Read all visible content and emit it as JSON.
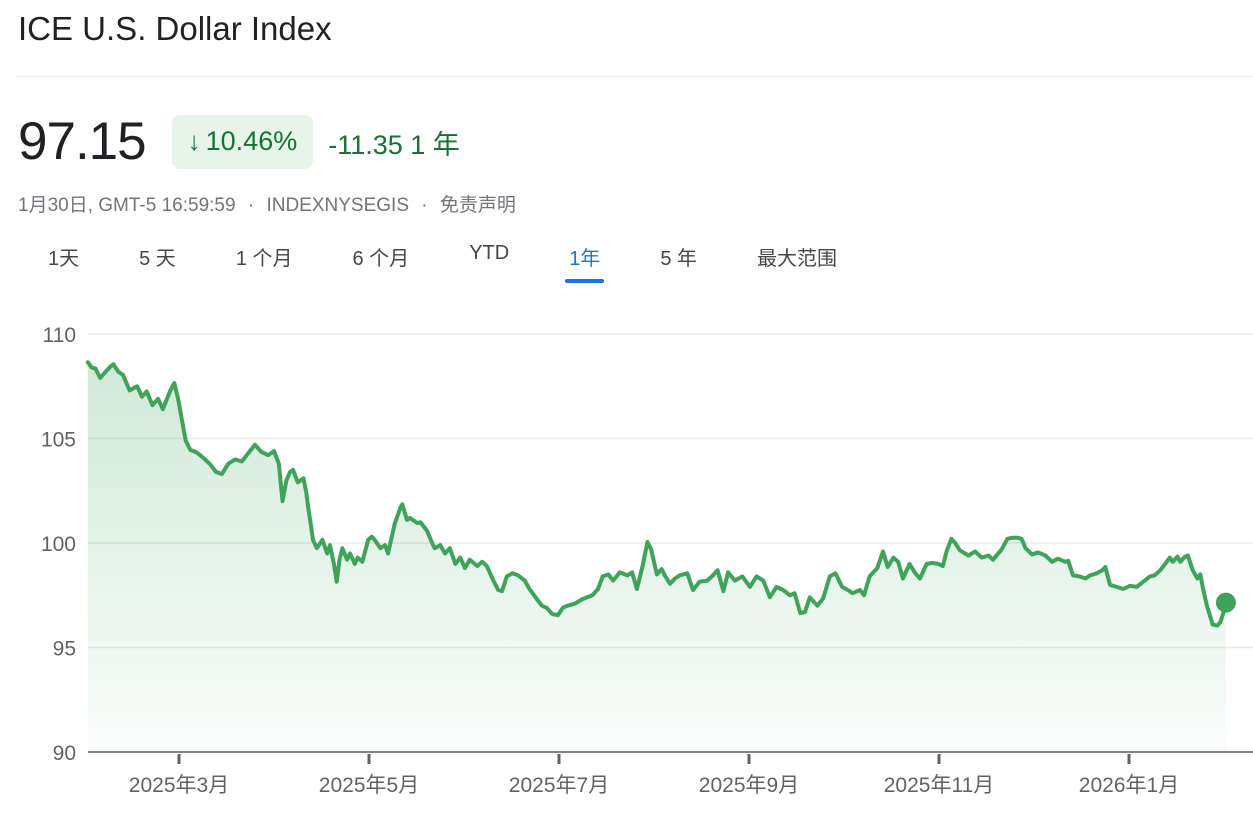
{
  "header": {
    "title": "ICE U.S. Dollar Index"
  },
  "quote": {
    "price": "97.15",
    "badge": {
      "arrow": "↓",
      "percent": "10.46%"
    },
    "change_text": "-11.35 1 年",
    "meta": {
      "datetime": "1月30日, GMT-5 16:59:59",
      "separator": "·",
      "exchange": "INDEXNYSEGIS",
      "disclaimer": "免责声明"
    }
  },
  "range_tabs": {
    "selected": "1年",
    "items": [
      "1天",
      "5 天",
      "1 个月",
      "6 个月",
      "YTD",
      "1年",
      "5 年",
      "最大范围"
    ]
  },
  "colors": {
    "line_green": "#3fa35a",
    "text_green": "#137333",
    "badge_bg": "#e6f4ea",
    "selected_blue": "#1a73e8",
    "axis_text": "#5f6368",
    "gridline": "#e9eaec",
    "baseline": "#808589"
  },
  "chart_data": {
    "type": "line",
    "title": "ICE U.S. Dollar Index — 1年",
    "x_unit": "months since 2025-02-01",
    "ylim": [
      90,
      110.5
    ],
    "y_ticks": [
      110,
      105,
      100,
      95,
      90
    ],
    "grid": "horizontal",
    "legend": "none",
    "area_fill": true,
    "x_ticks": [
      {
        "m": 1,
        "label": "2025年3月"
      },
      {
        "m": 3,
        "label": "2025年5月"
      },
      {
        "m": 5,
        "label": "2025年7月"
      },
      {
        "m": 7,
        "label": "2025年9月"
      },
      {
        "m": 9,
        "label": "2025年11月"
      },
      {
        "m": 11,
        "label": "2026年1月"
      }
    ],
    "last_point": {
      "value": 97.15,
      "marker": true
    },
    "series": [
      {
        "name": "ICE U.S. Dollar Index",
        "points": [
          [
            0.04,
            108.65
          ],
          [
            0.08,
            108.4
          ],
          [
            0.12,
            108.35
          ],
          [
            0.17,
            107.9
          ],
          [
            0.23,
            108.2
          ],
          [
            0.28,
            108.45
          ],
          [
            0.31,
            108.55
          ],
          [
            0.36,
            108.2
          ],
          [
            0.41,
            108.05
          ],
          [
            0.48,
            107.3
          ],
          [
            0.56,
            107.5
          ],
          [
            0.61,
            107.0
          ],
          [
            0.66,
            107.25
          ],
          [
            0.72,
            106.6
          ],
          [
            0.78,
            106.9
          ],
          [
            0.83,
            106.4
          ],
          [
            0.91,
            107.3
          ],
          [
            0.95,
            107.65
          ],
          [
            0.99,
            106.9
          ],
          [
            1.03,
            105.9
          ],
          [
            1.07,
            104.9
          ],
          [
            1.12,
            104.45
          ],
          [
            1.18,
            104.35
          ],
          [
            1.25,
            104.1
          ],
          [
            1.33,
            103.75
          ],
          [
            1.39,
            103.4
          ],
          [
            1.45,
            103.3
          ],
          [
            1.52,
            103.8
          ],
          [
            1.59,
            104.0
          ],
          [
            1.66,
            103.9
          ],
          [
            1.73,
            104.3
          ],
          [
            1.8,
            104.7
          ],
          [
            1.87,
            104.35
          ],
          [
            1.94,
            104.2
          ],
          [
            2.0,
            104.4
          ],
          [
            2.05,
            103.8
          ],
          [
            2.09,
            102.0
          ],
          [
            2.13,
            103.0
          ],
          [
            2.17,
            103.4
          ],
          [
            2.2,
            103.5
          ],
          [
            2.25,
            102.9
          ],
          [
            2.31,
            103.1
          ],
          [
            2.34,
            102.4
          ],
          [
            2.36,
            101.7
          ],
          [
            2.39,
            100.8
          ],
          [
            2.41,
            100.15
          ],
          [
            2.45,
            99.75
          ],
          [
            2.51,
            100.15
          ],
          [
            2.56,
            99.5
          ],
          [
            2.59,
            99.9
          ],
          [
            2.63,
            99.0
          ],
          [
            2.66,
            98.15
          ],
          [
            2.69,
            99.2
          ],
          [
            2.72,
            99.75
          ],
          [
            2.77,
            99.2
          ],
          [
            2.8,
            99.5
          ],
          [
            2.85,
            99.0
          ],
          [
            2.88,
            99.3
          ],
          [
            2.93,
            99.1
          ],
          [
            2.99,
            100.15
          ],
          [
            3.03,
            100.3
          ],
          [
            3.06,
            100.15
          ],
          [
            3.12,
            99.75
          ],
          [
            3.17,
            99.9
          ],
          [
            3.2,
            99.5
          ],
          [
            3.27,
            100.9
          ],
          [
            3.33,
            101.7
          ],
          [
            3.35,
            101.85
          ],
          [
            3.4,
            101.1
          ],
          [
            3.43,
            101.2
          ],
          [
            3.51,
            100.95
          ],
          [
            3.54,
            101.0
          ],
          [
            3.61,
            100.6
          ],
          [
            3.66,
            100.05
          ],
          [
            3.69,
            99.75
          ],
          [
            3.75,
            99.9
          ],
          [
            3.8,
            99.5
          ],
          [
            3.85,
            99.75
          ],
          [
            3.91,
            99.0
          ],
          [
            3.96,
            99.3
          ],
          [
            4.01,
            98.8
          ],
          [
            4.06,
            99.2
          ],
          [
            4.14,
            98.9
          ],
          [
            4.19,
            99.1
          ],
          [
            4.24,
            98.9
          ],
          [
            4.31,
            98.2
          ],
          [
            4.36,
            97.75
          ],
          [
            4.4,
            97.7
          ],
          [
            4.45,
            98.4
          ],
          [
            4.51,
            98.55
          ],
          [
            4.57,
            98.45
          ],
          [
            4.64,
            98.2
          ],
          [
            4.69,
            97.8
          ],
          [
            4.77,
            97.3
          ],
          [
            4.82,
            97.0
          ],
          [
            4.87,
            96.9
          ],
          [
            4.93,
            96.6
          ],
          [
            4.99,
            96.55
          ],
          [
            5.04,
            96.9
          ],
          [
            5.09,
            97.0
          ],
          [
            5.17,
            97.1
          ],
          [
            5.24,
            97.3
          ],
          [
            5.35,
            97.5
          ],
          [
            5.41,
            97.8
          ],
          [
            5.46,
            98.4
          ],
          [
            5.52,
            98.5
          ],
          [
            5.57,
            98.2
          ],
          [
            5.64,
            98.6
          ],
          [
            5.72,
            98.45
          ],
          [
            5.77,
            98.6
          ],
          [
            5.82,
            97.8
          ],
          [
            5.88,
            98.9
          ],
          [
            5.93,
            100.05
          ],
          [
            5.97,
            99.7
          ],
          [
            6.03,
            98.5
          ],
          [
            6.08,
            98.75
          ],
          [
            6.12,
            98.4
          ],
          [
            6.17,
            98.05
          ],
          [
            6.22,
            98.3
          ],
          [
            6.27,
            98.45
          ],
          [
            6.35,
            98.55
          ],
          [
            6.41,
            97.75
          ],
          [
            6.48,
            98.15
          ],
          [
            6.56,
            98.2
          ],
          [
            6.62,
            98.45
          ],
          [
            6.67,
            98.7
          ],
          [
            6.73,
            97.7
          ],
          [
            6.78,
            98.6
          ],
          [
            6.85,
            98.2
          ],
          [
            6.93,
            98.4
          ],
          [
            7.01,
            97.9
          ],
          [
            7.08,
            98.4
          ],
          [
            7.15,
            98.2
          ],
          [
            7.22,
            97.4
          ],
          [
            7.29,
            97.9
          ],
          [
            7.36,
            97.75
          ],
          [
            7.43,
            97.5
          ],
          [
            7.48,
            97.6
          ],
          [
            7.54,
            96.65
          ],
          [
            7.59,
            96.7
          ],
          [
            7.64,
            97.4
          ],
          [
            7.72,
            97.0
          ],
          [
            7.78,
            97.35
          ],
          [
            7.85,
            98.4
          ],
          [
            7.91,
            98.55
          ],
          [
            7.98,
            97.9
          ],
          [
            8.04,
            97.75
          ],
          [
            8.09,
            97.6
          ],
          [
            8.17,
            97.75
          ],
          [
            8.21,
            97.5
          ],
          [
            8.27,
            98.4
          ],
          [
            8.35,
            98.8
          ],
          [
            8.41,
            99.6
          ],
          [
            8.46,
            98.85
          ],
          [
            8.52,
            99.3
          ],
          [
            8.57,
            99.1
          ],
          [
            8.62,
            98.3
          ],
          [
            8.69,
            99.0
          ],
          [
            8.75,
            98.55
          ],
          [
            8.8,
            98.3
          ],
          [
            8.87,
            99.0
          ],
          [
            8.93,
            99.05
          ],
          [
            8.99,
            99.0
          ],
          [
            9.04,
            98.9
          ],
          [
            9.08,
            99.6
          ],
          [
            9.13,
            100.2
          ],
          [
            9.17,
            100.0
          ],
          [
            9.22,
            99.65
          ],
          [
            9.31,
            99.4
          ],
          [
            9.38,
            99.6
          ],
          [
            9.45,
            99.3
          ],
          [
            9.52,
            99.4
          ],
          [
            9.57,
            99.2
          ],
          [
            9.66,
            99.7
          ],
          [
            9.72,
            100.2
          ],
          [
            9.77,
            100.25
          ],
          [
            9.83,
            100.25
          ],
          [
            9.87,
            100.2
          ],
          [
            9.91,
            99.75
          ],
          [
            9.98,
            99.45
          ],
          [
            10.04,
            99.55
          ],
          [
            10.12,
            99.4
          ],
          [
            10.19,
            99.1
          ],
          [
            10.25,
            99.25
          ],
          [
            10.33,
            99.1
          ],
          [
            10.36,
            99.15
          ],
          [
            10.41,
            98.45
          ],
          [
            10.48,
            98.4
          ],
          [
            10.54,
            98.3
          ],
          [
            10.59,
            98.45
          ],
          [
            10.66,
            98.55
          ],
          [
            10.72,
            98.7
          ],
          [
            10.75,
            98.85
          ],
          [
            10.8,
            98.0
          ],
          [
            10.87,
            97.9
          ],
          [
            10.94,
            97.8
          ],
          [
            11.01,
            97.95
          ],
          [
            11.08,
            97.9
          ],
          [
            11.15,
            98.15
          ],
          [
            11.22,
            98.4
          ],
          [
            11.27,
            98.45
          ],
          [
            11.33,
            98.7
          ],
          [
            11.38,
            99.0
          ],
          [
            11.43,
            99.3
          ],
          [
            11.46,
            99.1
          ],
          [
            11.51,
            99.35
          ],
          [
            11.54,
            99.1
          ],
          [
            11.59,
            99.35
          ],
          [
            11.62,
            99.4
          ],
          [
            11.67,
            98.7
          ],
          [
            11.72,
            98.3
          ],
          [
            11.75,
            98.5
          ],
          [
            11.78,
            97.8
          ],
          [
            11.82,
            97.0
          ],
          [
            11.85,
            96.55
          ],
          [
            11.88,
            96.1
          ],
          [
            11.93,
            96.05
          ],
          [
            11.96,
            96.2
          ],
          [
            11.99,
            96.6
          ],
          [
            12.02,
            97.15
          ]
        ]
      }
    ]
  }
}
